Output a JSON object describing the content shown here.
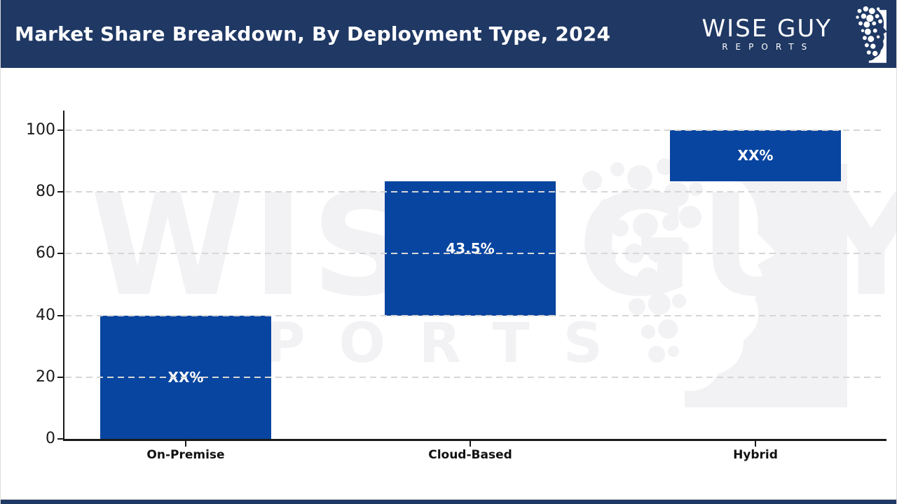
{
  "header": {
    "title": "Market Share Breakdown, By Deployment Type, 2024",
    "logo": {
      "line1": "WISE GUY",
      "line2": "REPORTS"
    }
  },
  "watermark": {
    "line1": "WISE GUY",
    "line2": "REPORTS"
  },
  "chart_data": {
    "type": "bar",
    "subtype": "floating-waterfall",
    "title": "Market Share Breakdown, By Deployment Type, 2024",
    "categories": [
      "On-Premise",
      "Cloud-Based",
      "Hybrid"
    ],
    "bars": [
      {
        "category": "On-Premise",
        "start": 0,
        "end": 40,
        "label": "XX%"
      },
      {
        "category": "Cloud-Based",
        "start": 40,
        "end": 83.5,
        "label": "43.5%"
      },
      {
        "category": "Hybrid",
        "start": 83.5,
        "end": 100,
        "label": "XX%"
      }
    ],
    "ylim": [
      0,
      100
    ],
    "yticks": [
      0,
      20,
      40,
      60,
      80,
      100
    ],
    "xlabel": "",
    "ylabel": "",
    "grid": "horizontal-dashed-on-top",
    "legend": "none",
    "colors": {
      "bar": "#0845a0",
      "bar_label": "#ffffff",
      "grid": "#d6d6d6",
      "axis": "#1a1a1a",
      "header_bg": "#1f3864",
      "watermark": "#f2f2f4"
    }
  }
}
